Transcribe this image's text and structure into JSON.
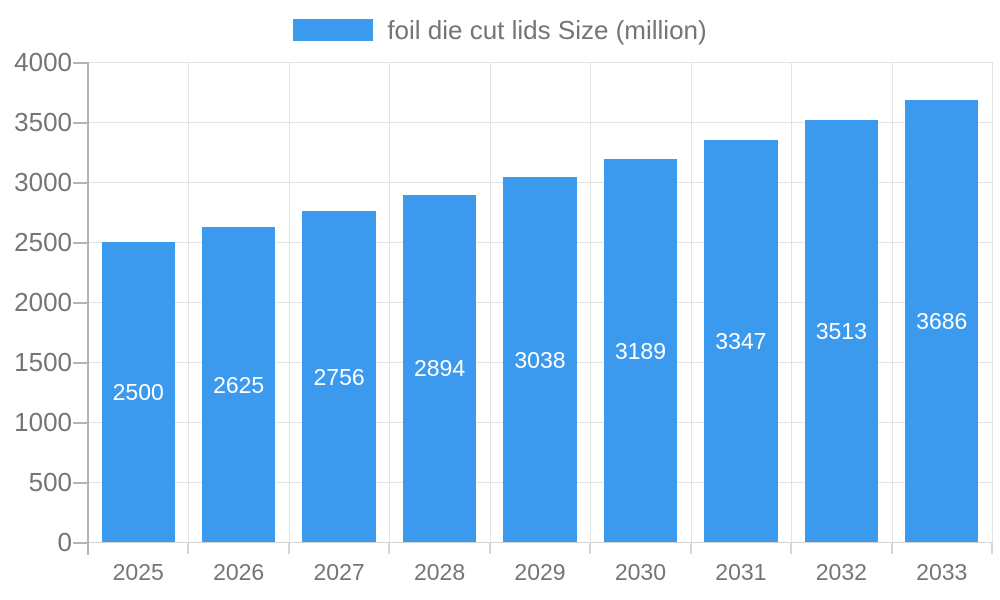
{
  "legend": {
    "label": "foil die cut lids Size (million)"
  },
  "chart_data": {
    "type": "bar",
    "title": "",
    "series_name": "foil die cut lids Size (million)",
    "categories": [
      "2025",
      "2026",
      "2027",
      "2028",
      "2029",
      "2030",
      "2031",
      "2032",
      "2033"
    ],
    "values": [
      2500,
      2625,
      2756,
      2894,
      3038,
      3189,
      3347,
      3513,
      3686
    ],
    "xlabel": "",
    "ylabel": "",
    "ylim": [
      0,
      4000
    ],
    "yticks": [
      0,
      500,
      1000,
      1500,
      2000,
      2500,
      3000,
      3500,
      4000
    ],
    "grid": true,
    "legend_position": "top",
    "colors": {
      "bar": "#3B99EE",
      "grid": "#e3e3e3",
      "baseline": "#d4d4d4",
      "axis": "#b3b3b3",
      "xtick": "#d6d6d6",
      "text": "#757575",
      "bar_label": "#ffffff",
      "background": "#ffffff"
    }
  }
}
